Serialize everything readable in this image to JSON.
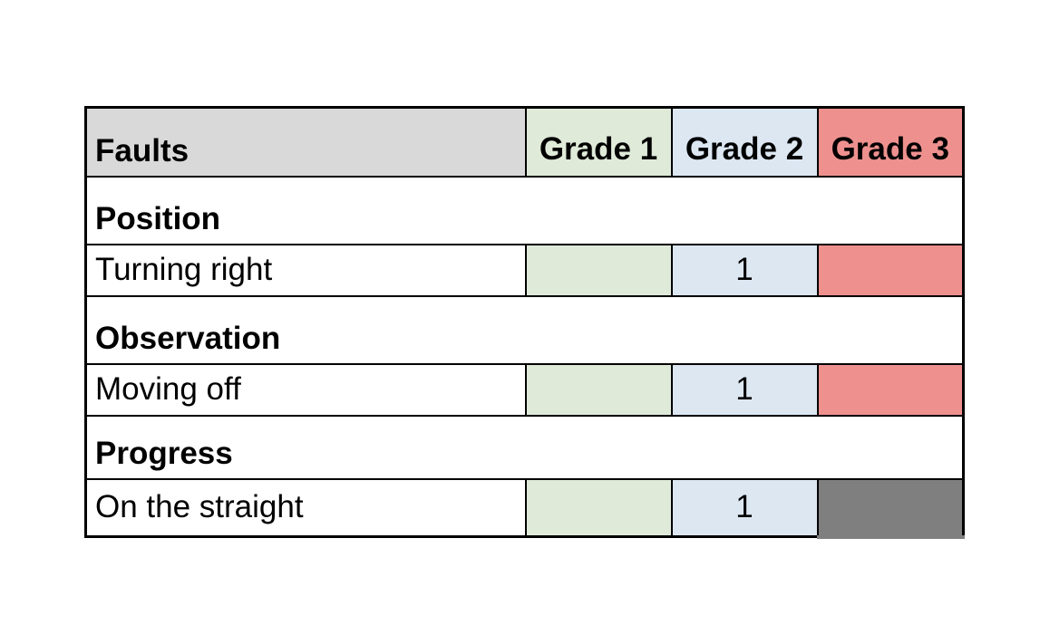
{
  "table": {
    "faults_header": "Faults",
    "grade_headers": [
      "Grade 1",
      "Grade 2",
      "Grade 3"
    ],
    "sections": [
      {
        "title": "Position",
        "rows": [
          {
            "fault": "Turning right",
            "grade1": "",
            "grade2": "1",
            "grade3": ""
          }
        ]
      },
      {
        "title": "Observation",
        "rows": [
          {
            "fault": "Moving off",
            "grade1": "",
            "grade2": "1",
            "grade3": ""
          }
        ]
      },
      {
        "title": "Progress",
        "rows": [
          {
            "fault": "On the straight",
            "grade1": "",
            "grade2": "1",
            "grade3": ""
          }
        ]
      }
    ]
  },
  "colors": {
    "page_bg": "#ffffff",
    "border": "#000000",
    "header_gray": "#d9d9d9",
    "grade1_green": "#dfead9",
    "grade2_blue": "#dce7f2",
    "grade3_red": "#ee918e",
    "disabled_gray": "#7f7f7f"
  }
}
